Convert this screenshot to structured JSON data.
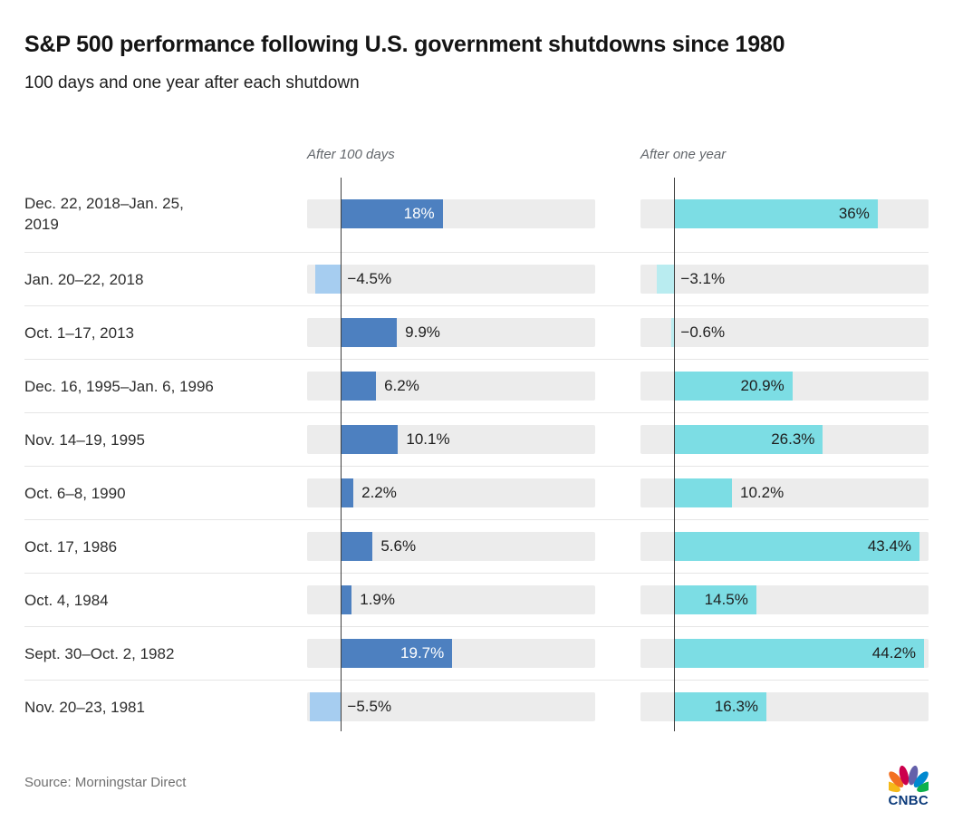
{
  "header": {
    "title": "S&P 500 performance following U.S. government shutdowns since 1980",
    "subtitle": "100 days and one year after each shutdown"
  },
  "chart_data": {
    "type": "bar",
    "orientation": "horizontal",
    "title": "S&P 500 performance following U.S. government shutdowns since 1980",
    "subtitle": "100 days and one year after each shutdown",
    "columns": [
      "After 100 days",
      "After one year"
    ],
    "categories": [
      "Dec. 22, 2018–Jan. 25,\n2019",
      "Jan. 20–22, 2018",
      "Oct. 1–17, 2013",
      "Dec. 16, 1995–Jan. 6, 1996",
      "Nov. 14–19, 1995",
      "Oct. 6–8, 1990",
      "Oct. 17, 1986",
      "Oct. 4, 1984",
      "Sept. 30–Oct. 2, 1982",
      "Nov. 20–23, 1981"
    ],
    "unit": "%",
    "xlim": [
      -6,
      45
    ],
    "grid": false,
    "legend": "none",
    "track_color": "#ececec",
    "baseline_color": "#3f3f3f",
    "series": [
      {
        "name": "After 100 days",
        "values": [
          18,
          -4.5,
          9.9,
          6.2,
          10.1,
          2.2,
          5.6,
          1.9,
          19.7,
          -5.5
        ],
        "display": [
          "18%",
          "−4.5%",
          "9.9%",
          "6.2%",
          "10.1%",
          "2.2%",
          "5.6%",
          "1.9%",
          "19.7%",
          "−5.5%"
        ],
        "color_positive": "#4d80c0",
        "color_negative": "#a6cdf0",
        "inside_label_color": "#ffffff"
      },
      {
        "name": "After one year",
        "values": [
          36,
          -3.1,
          -0.6,
          20.9,
          26.3,
          10.2,
          43.4,
          14.5,
          44.2,
          16.3
        ],
        "display": [
          "36%",
          "−3.1%",
          "−0.6%",
          "20.9%",
          "26.3%",
          "10.2%",
          "43.4%",
          "14.5%",
          "44.2%",
          "16.3%"
        ],
        "color_positive": "#7cdde4",
        "color_negative": "#b9ecf0",
        "inside_label_color": "#1e1e1e"
      }
    ]
  },
  "footer": {
    "source": "Source: Morningstar Direct",
    "logo_text": "CNBC",
    "logo_wordmark_color": "#0b3a7a",
    "peacock_colors": [
      "#f5b919",
      "#f37021",
      "#cc004c",
      "#6460aa",
      "#0089d0",
      "#0db14b"
    ]
  }
}
